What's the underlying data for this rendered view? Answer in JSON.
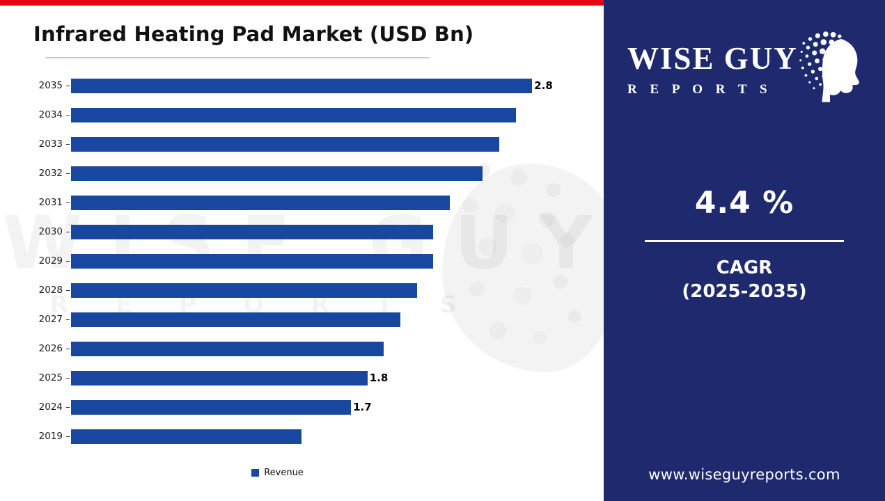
{
  "colors": {
    "bar": "#17479E",
    "panel_background": "#1F2A6E",
    "top_strip": "#E30613",
    "legend_marker": "#17479E"
  },
  "chart_data": {
    "type": "bar",
    "orientation": "horizontal",
    "title": "Infrared Heating Pad Market (USD Bn)",
    "categories": [
      "2035",
      "2034",
      "2033",
      "2032",
      "2031",
      "2030",
      "2029",
      "2028",
      "2027",
      "2026",
      "2025",
      "2024",
      "2019"
    ],
    "values": [
      2.8,
      2.7,
      2.6,
      2.5,
      2.3,
      2.2,
      2.2,
      2.1,
      2.0,
      1.9,
      1.8,
      1.7,
      1.4
    ],
    "bar_labels": [
      "2.8",
      "",
      "",
      "",
      "",
      "",
      "",
      "",
      "",
      "",
      "1.8",
      "1.7",
      ""
    ],
    "legend": [
      "Revenue"
    ],
    "legend_position": "bottom",
    "xlim": [
      0,
      3.15
    ],
    "grid": false,
    "xlabel": "",
    "ylabel": ""
  },
  "watermark": {
    "line1": "WISE GUY",
    "line2": "R E P O R T S"
  },
  "sidebar": {
    "logo": {
      "title": "WISE GUY",
      "subtitle": "R E P O R T S"
    },
    "cagr": {
      "value": "4.4 %",
      "label": "CAGR",
      "period": "(2025-2035)"
    },
    "website": "www.wiseguyreports.com"
  }
}
